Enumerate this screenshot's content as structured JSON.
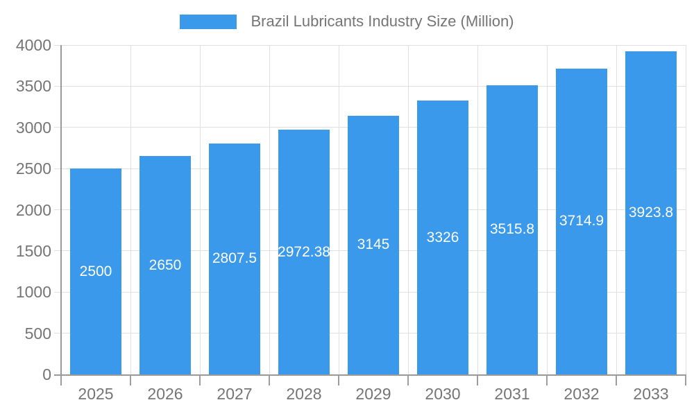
{
  "legend": {
    "label": "Brazil Lubricants Industry Size (Million)"
  },
  "chart_data": {
    "type": "bar",
    "title": "Brazil Lubricants Industry Size (Million)",
    "categories": [
      "2025",
      "2026",
      "2027",
      "2028",
      "2029",
      "2030",
      "2031",
      "2032",
      "2033"
    ],
    "values": [
      2500,
      2650,
      2807.5,
      2972.38,
      3145,
      3326,
      3515.8,
      3714.9,
      3923.8
    ],
    "value_labels": [
      "2500",
      "2650",
      "2807.5",
      "2972.38",
      "3145",
      "3326",
      "3515.8",
      "3714.9",
      "3923.8"
    ],
    "xlabel": "",
    "ylabel": "",
    "ylim": [
      0,
      4000
    ],
    "yticks": [
      0,
      500,
      1000,
      1500,
      2000,
      2500,
      3000,
      3500,
      4000
    ],
    "grid": true,
    "legend_position": "top",
    "bar_label_position": "center",
    "colors": {
      "bar": "#3B99EC",
      "grid": "#E0E0E0",
      "axis": "#999999",
      "tick_text": "#757575",
      "bar_label_text": "#FFFFFF",
      "background": "#FFFFFF"
    }
  }
}
